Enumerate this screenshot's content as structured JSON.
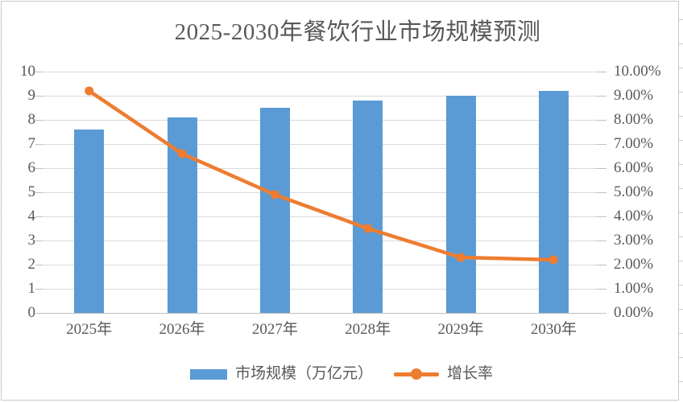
{
  "chart_data": {
    "type": "combo",
    "title": "2025-2030年餐饮行业市场规模预测",
    "categories": [
      "2025年",
      "2026年",
      "2027年",
      "2028年",
      "2029年",
      "2030年"
    ],
    "series": [
      {
        "name": "市场规模（万亿元）",
        "type": "bar",
        "axis": "left",
        "color": "#5B9BD5",
        "values": [
          7.6,
          8.1,
          8.5,
          8.8,
          9.0,
          9.2
        ]
      },
      {
        "name": "增长率",
        "type": "line",
        "axis": "right",
        "color": "#ED7D31",
        "unit": "%",
        "values": [
          9.2,
          6.6,
          4.9,
          3.5,
          2.3,
          2.2
        ]
      }
    ],
    "left_axis": {
      "min": 0,
      "max": 10,
      "step": 1,
      "ticks": [
        "0",
        "1",
        "2",
        "3",
        "4",
        "5",
        "6",
        "7",
        "8",
        "9",
        "10"
      ]
    },
    "right_axis": {
      "min": 0,
      "max": 10,
      "step": 1,
      "ticks": [
        "0.00%",
        "1.00%",
        "2.00%",
        "3.00%",
        "4.00%",
        "5.00%",
        "6.00%",
        "7.00%",
        "8.00%",
        "9.00%",
        "10.00%"
      ]
    },
    "grid": true,
    "legend_position": "bottom"
  },
  "colors": {
    "bar": "#5B9BD5",
    "line": "#ED7D31",
    "grid": "#D9D9D9",
    "baseline": "#BFBFBF",
    "tick": "#BFBFBF",
    "axis_text": "#595959",
    "title_text": "#595959",
    "frame_border": "#C9C9C9",
    "background": "#FFFFFF"
  }
}
